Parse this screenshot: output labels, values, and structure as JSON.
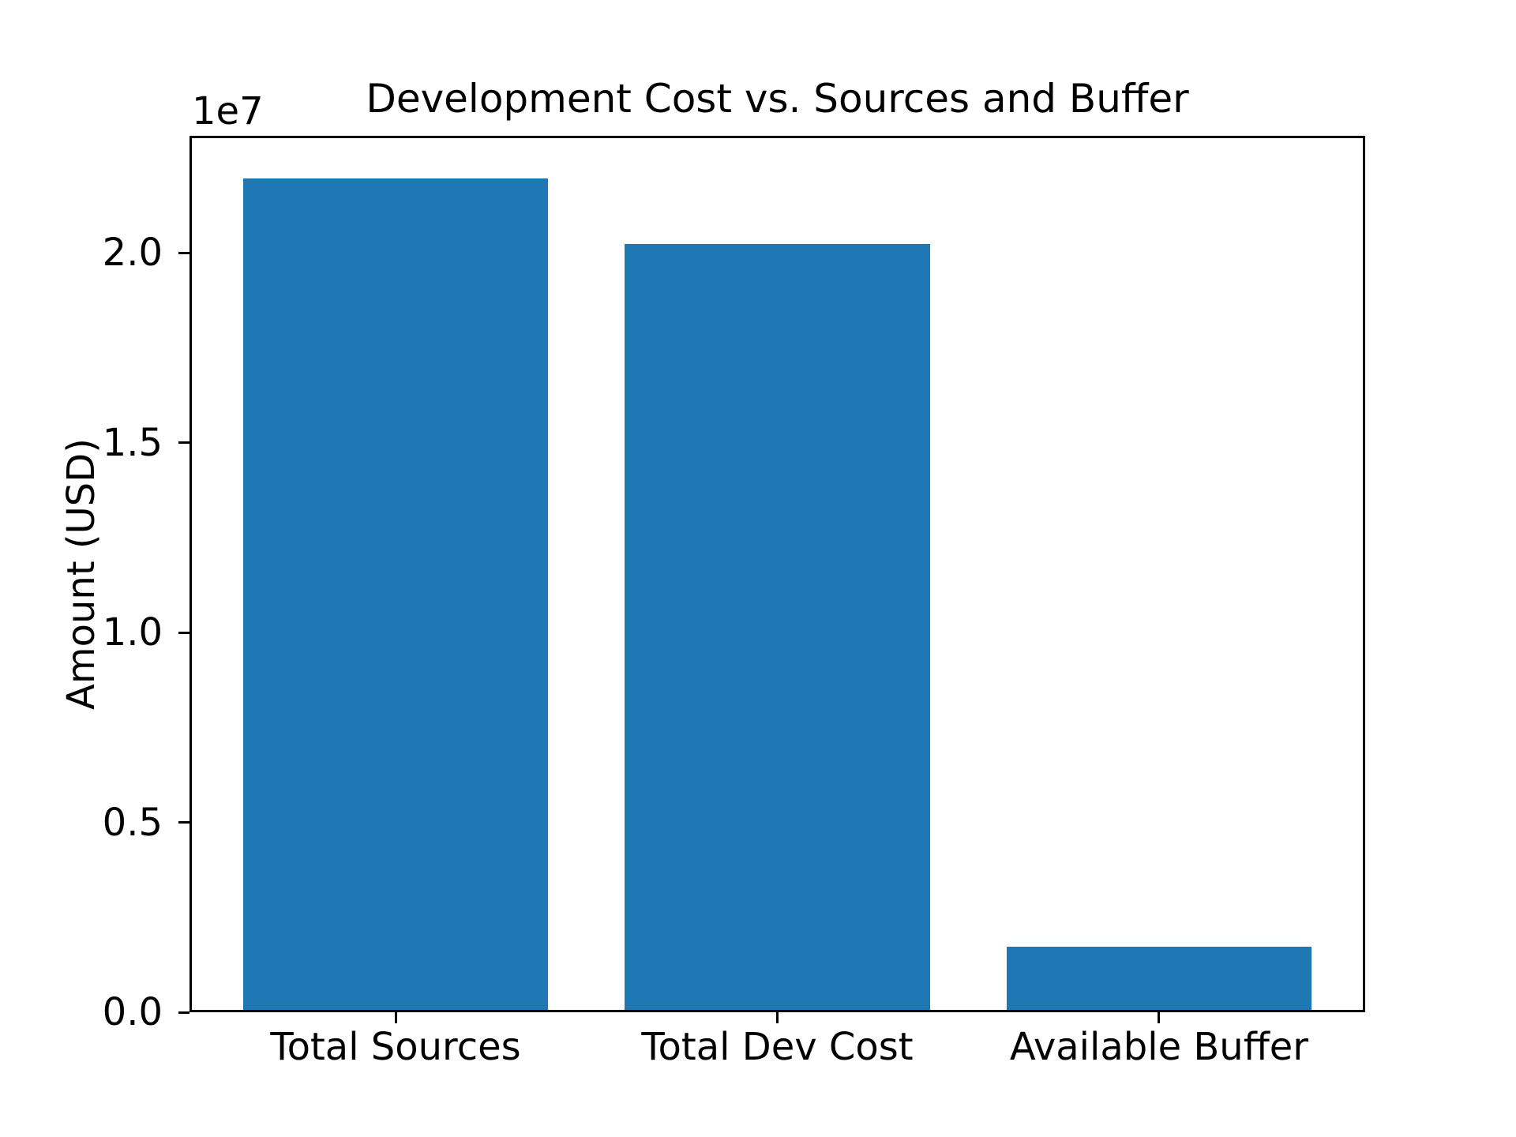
{
  "chart_data": {
    "type": "bar",
    "title": "Development Cost vs. Sources and Buffer",
    "ylabel": "Amount (USD)",
    "xlabel": "",
    "categories": [
      "Total Sources",
      "Total Dev Cost",
      "Available Buffer"
    ],
    "values": [
      21950000,
      20225000,
      1725000
    ],
    "bar_color": "#1f77b4",
    "axis_color": "#000000",
    "background_color": "#ffffff",
    "ylim": [
      0,
      23077000
    ],
    "yticks": [
      0,
      5000000,
      10000000,
      15000000,
      20000000
    ],
    "ytick_labels": [
      "0.0",
      "0.5",
      "1.0",
      "1.5",
      "2.0"
    ],
    "offset_text": "1e7",
    "grid": false,
    "legend_position": "none"
  }
}
